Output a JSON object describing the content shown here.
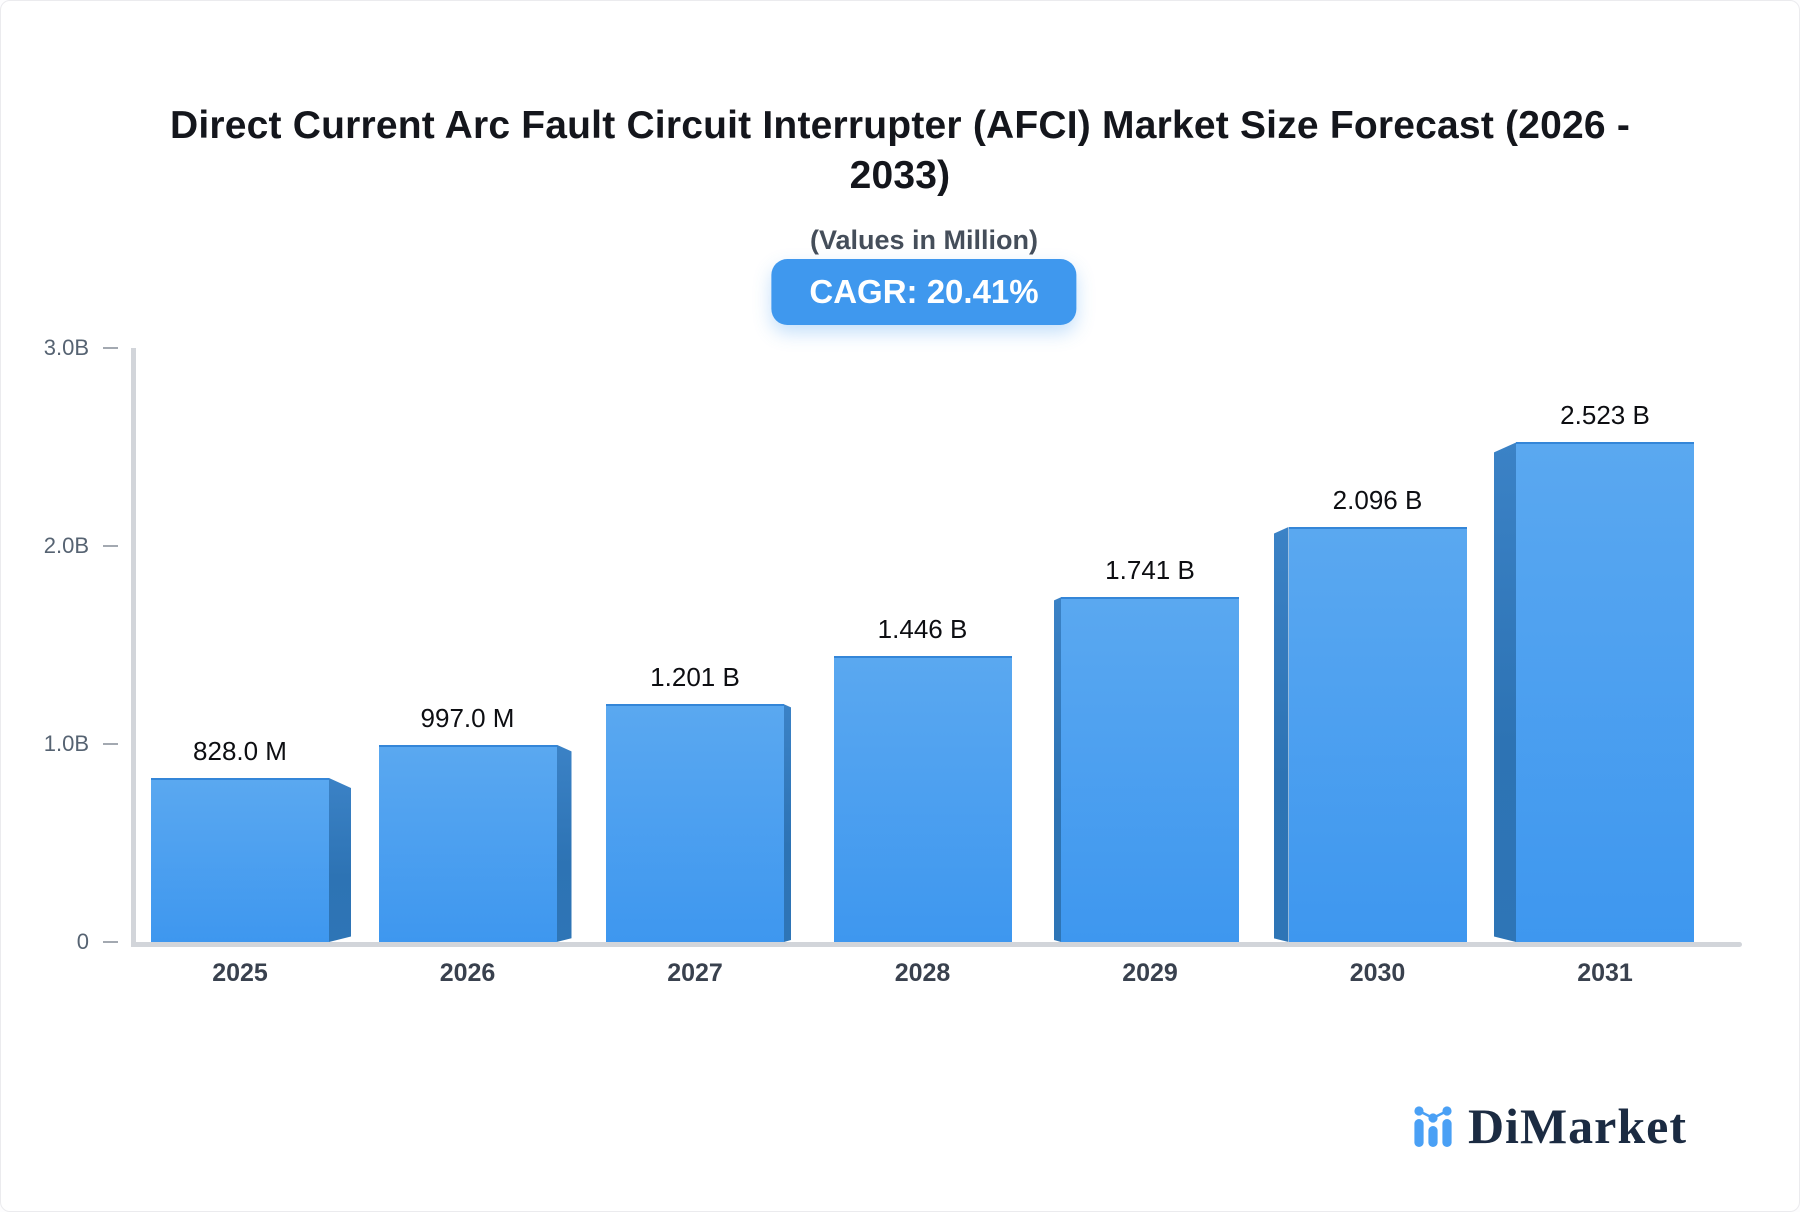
{
  "header": {
    "title_line1": "Direct Current Arc Fault Circuit Interrupter (AFCI) Market Size Forecast (2026 -",
    "title_line2": "2033)",
    "subtitle": "(Values in Million)",
    "cagr_label": "CAGR: 20.41%"
  },
  "brand": {
    "name": "DiMarket",
    "icon": "dimarket-bars-icon"
  },
  "colors": {
    "accent_blue": "#3f98ee",
    "bar_face_top": "#5aa8f0",
    "bar_face_bottom": "#3e97ef",
    "bar_top_edge": "#3486d8",
    "bar_side": "#2e75b6",
    "axis_line": "#d2d5da",
    "tick": "#a3a9b1",
    "y_label_text": "#566372",
    "x_label_text": "#39414e",
    "value_label_text": "#0d0e12",
    "badge_text": "#ffffff",
    "logo_navy": "#1b2b42",
    "logo_blue": "#4aa0f5"
  },
  "chart_data": {
    "type": "bar",
    "title": "Direct Current Arc Fault Circuit Interrupter (AFCI) Market Size Forecast (2026 - 2033)",
    "subtitle": "(Values in Million)",
    "cagr_percent": 20.41,
    "categories": [
      "2025",
      "2026",
      "2027",
      "2028",
      "2029",
      "2030",
      "2031"
    ],
    "values_billion": [
      0.828,
      0.997,
      1.201,
      1.446,
      1.741,
      2.096,
      2.523
    ],
    "value_labels": [
      "828.0 M",
      "997.0 M",
      "1.201 B",
      "1.446 B",
      "1.741 B",
      "2.096 B",
      "2.523 B"
    ],
    "ylim": [
      0,
      3.0
    ],
    "ytick_values": [
      3.0,
      2.0,
      1.0,
      0
    ],
    "ytick_labels": [
      "3.0B",
      "2.0B",
      "1.0B",
      "0"
    ],
    "grid": false,
    "legend": false,
    "bar_style": "3d-perspective-to-center"
  }
}
